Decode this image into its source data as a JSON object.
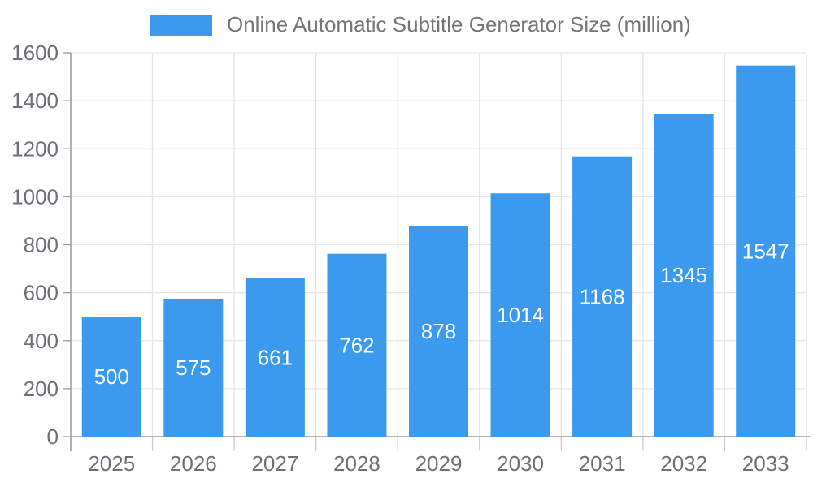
{
  "chart_data": {
    "type": "bar",
    "title": "Online Automatic Subtitle Generator Size (million)",
    "series_name": "Online Automatic Subtitle Generator Size (million)",
    "categories": [
      "2025",
      "2026",
      "2027",
      "2028",
      "2029",
      "2030",
      "2031",
      "2032",
      "2033"
    ],
    "values": [
      500,
      575,
      661,
      762,
      878,
      1014,
      1168,
      1345,
      1547
    ],
    "xlabel": "",
    "ylabel": "",
    "ylim": [
      0,
      1600
    ],
    "y_ticks": [
      0,
      200,
      400,
      600,
      800,
      1000,
      1200,
      1400,
      1600
    ],
    "grid": true,
    "legend_position": "top",
    "bar_label_position": "inside-center",
    "colors": {
      "bar": "#3B99EE",
      "bar_label": "#FFFFFF",
      "axis_label": "#6E7079",
      "legend_text": "#757575",
      "grid_line": "#E5E5E5",
      "axis_line": "#9A9A9A",
      "tick_line": "#CCCCCC",
      "background": "#FFFFFF"
    }
  }
}
